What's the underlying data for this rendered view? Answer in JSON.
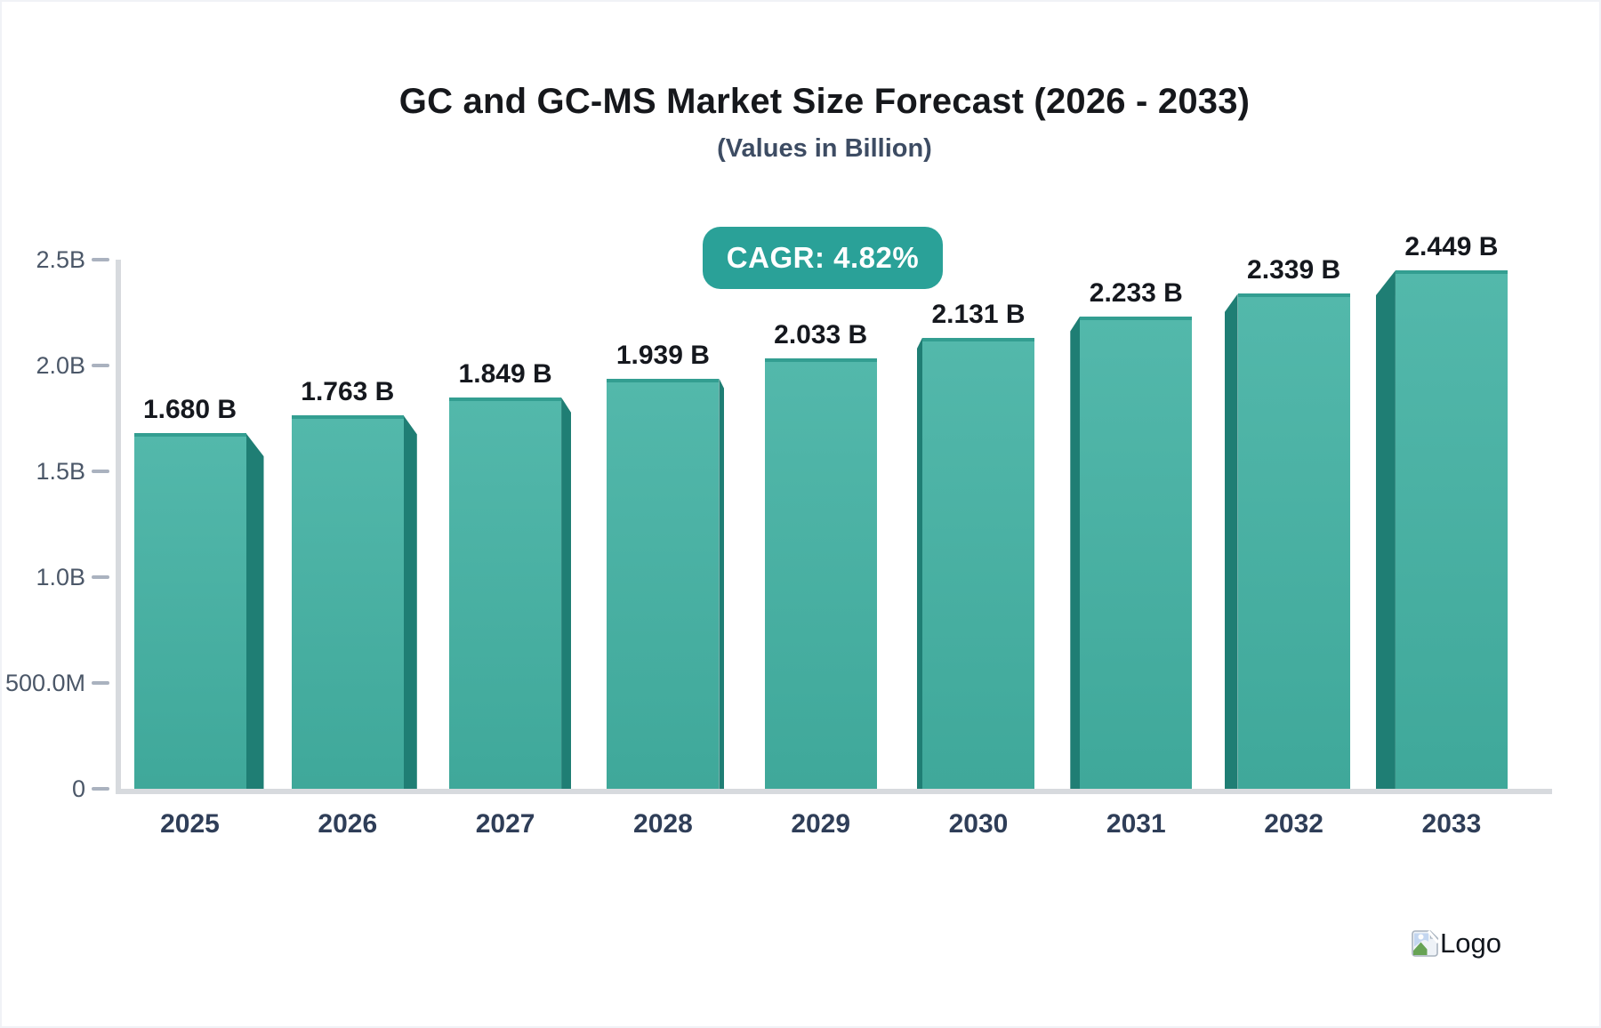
{
  "title": "GC and GC-MS Market Size Forecast (2026 - 2033)",
  "subtitle": "(Values in Billion)",
  "badge": {
    "label": "CAGR: 4.82%"
  },
  "logo": {
    "text": "Logo",
    "icon": "broken-image-icon"
  },
  "colors": {
    "badge_bg": "#2aa198",
    "bar_face_top": "#53b8ab",
    "bar_face_bottom": "#3fa89a",
    "bar_top_edge": "#339e91",
    "bar_side": "#1f7e74"
  },
  "chart_data": {
    "type": "bar",
    "title": "GC and GC-MS Market Size Forecast (2026 - 2033)",
    "subtitle": "(Values in Billion)",
    "annotation": "CAGR: 4.82%",
    "categories": [
      "2025",
      "2026",
      "2027",
      "2028",
      "2029",
      "2030",
      "2031",
      "2032",
      "2033"
    ],
    "values": [
      1.68,
      1.763,
      1.849,
      1.939,
      2.033,
      2.131,
      2.233,
      2.339,
      2.449
    ],
    "value_labels": [
      "1.680 B",
      "1.763 B",
      "1.849 B",
      "1.939 B",
      "2.033 B",
      "2.131 B",
      "2.233 B",
      "2.339 B",
      "2.449 B"
    ],
    "xlabel": "",
    "ylabel": "",
    "ylim": [
      0,
      2.5
    ],
    "yticks": [
      {
        "value": 0.0,
        "label": "0"
      },
      {
        "value": 0.5,
        "label": "500.0M"
      },
      {
        "value": 1.0,
        "label": "1.0B"
      },
      {
        "value": 1.5,
        "label": "1.5B"
      },
      {
        "value": 2.0,
        "label": "2.0B"
      },
      {
        "value": 2.5,
        "label": "2.5B"
      }
    ],
    "grid": false,
    "legend": null
  }
}
